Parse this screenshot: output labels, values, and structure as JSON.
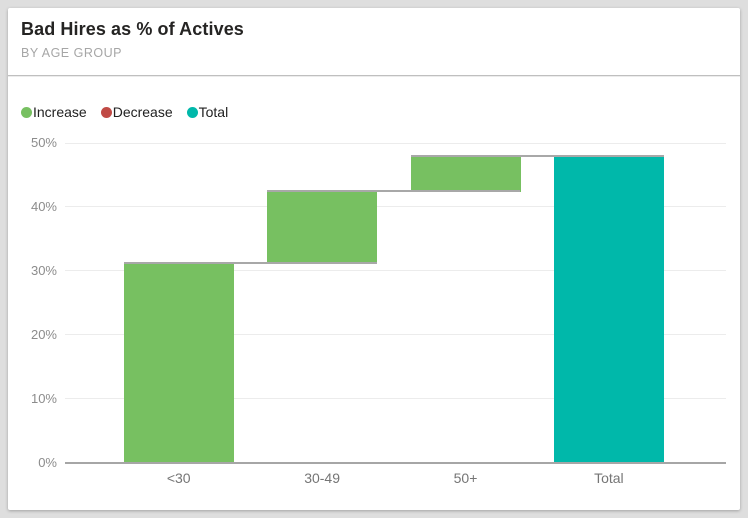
{
  "card": {
    "title": "Bad Hires as % of Actives",
    "subtitle": "BY AGE GROUP"
  },
  "legend": {
    "items": [
      {
        "label": "Increase",
        "color": "#77C061",
        "icon": "circle"
      },
      {
        "label": "Decrease",
        "color": "#C04A45",
        "icon": "circle"
      },
      {
        "label": "Total",
        "color": "#00B8AA",
        "icon": "circle"
      }
    ]
  },
  "chart_data": {
    "type": "bar",
    "subtype": "waterfall",
    "title": "Bad Hires as % of Actives",
    "subtitle": "BY AGE GROUP",
    "categories": [
      "<30",
      "30-49",
      "50+",
      "Total"
    ],
    "segments": [
      {
        "category": "<30",
        "kind": "increase",
        "start": 0,
        "end": 31.0,
        "delta": 31.0
      },
      {
        "category": "30-49",
        "kind": "increase",
        "start": 31.0,
        "end": 42.4,
        "delta": 11.4
      },
      {
        "category": "50+",
        "kind": "increase",
        "start": 42.4,
        "end": 47.8,
        "delta": 5.4
      },
      {
        "category": "Total",
        "kind": "total",
        "start": 0,
        "end": 47.8,
        "delta": 47.8
      }
    ],
    "ylim": [
      0,
      50
    ],
    "yticks": [
      0,
      10,
      20,
      30,
      40,
      50
    ],
    "ytick_suffix": "%",
    "grid": true,
    "legend_position": "top-left",
    "colors": {
      "increase": "#77C061",
      "decrease": "#C04A45",
      "total": "#00B8AA",
      "gridline": "#ECECEC",
      "zero_line": "#A6A6A6",
      "connector": "#A8A8A8"
    }
  }
}
